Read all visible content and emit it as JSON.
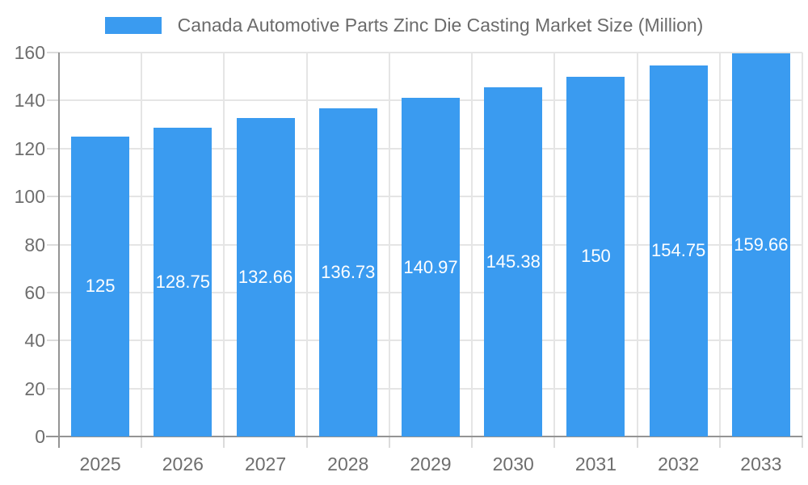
{
  "legend": {
    "swatch_color": "#3A9BF0"
  },
  "chart_data": {
    "type": "bar",
    "title": "Canada Automotive Parts Zinc Die Casting Market Size (Million)",
    "xlabel": "",
    "ylabel": "",
    "categories": [
      "2025",
      "2026",
      "2027",
      "2028",
      "2029",
      "2030",
      "2031",
      "2032",
      "2033"
    ],
    "values": [
      125,
      128.75,
      132.66,
      136.73,
      140.97,
      145.38,
      150,
      154.75,
      159.66
    ],
    "value_labels": [
      "125",
      "128.75",
      "132.66",
      "136.73",
      "140.97",
      "145.38",
      "150",
      "154.75",
      "159.66"
    ],
    "ylim": [
      0,
      160
    ],
    "yticks": [
      0,
      20,
      40,
      60,
      80,
      100,
      120,
      140,
      160
    ],
    "grid": true,
    "legend_position": "top",
    "bar_color": "#3A9BF0",
    "bar_label_color": "#ffffff",
    "axis_text_color": "#6e6e6e",
    "grid_color": "#e5e5e5",
    "tick_color": "#dcdcdc",
    "axis_line_color": "#949494"
  }
}
